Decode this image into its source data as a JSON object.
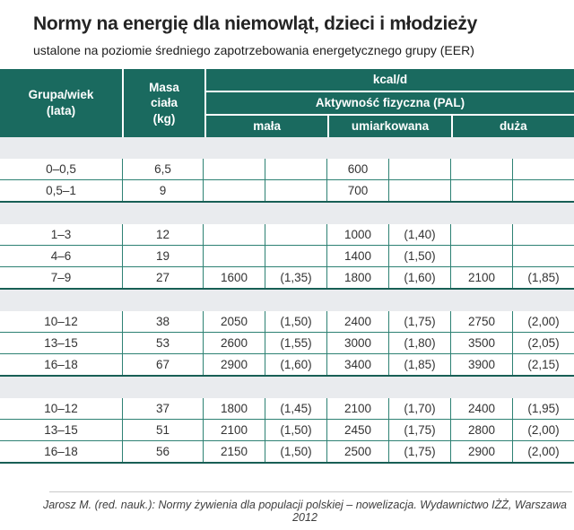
{
  "title": "Normy na energię dla niemowląt, dzieci i młodzieży",
  "subtitle": "ustalone na poziomie średniego zapotrzebowania energetycznego grupy (EER)",
  "table": {
    "header": {
      "group_col": "Grupa/wiek\n(lata)",
      "mass_col": "Masa\nciała\n(kg)",
      "kcal": "kcal/d",
      "pal": "Aktywność fizyczna (PAL)",
      "activity_levels": [
        "mała",
        "umiarkowana",
        "duża"
      ]
    },
    "columns": [
      "wiek",
      "masa",
      "mała kcal",
      "mała PAL",
      "umiarkowana kcal",
      "umiarkowana PAL",
      "duża kcal",
      "duża PAL"
    ],
    "groups": [
      {
        "rows": [
          [
            "0–0,5",
            "6,5",
            "",
            "",
            "600",
            "",
            "",
            ""
          ],
          [
            "0,5–1",
            "9",
            "",
            "",
            "700",
            "",
            "",
            ""
          ]
        ]
      },
      {
        "rows": [
          [
            "1–3",
            "12",
            "",
            "",
            "1000",
            "(1,40)",
            "",
            ""
          ],
          [
            "4–6",
            "19",
            "",
            "",
            "1400",
            "(1,50)",
            "",
            ""
          ],
          [
            "7–9",
            "27",
            "1600",
            "(1,35)",
            "1800",
            "(1,60)",
            "2100",
            "(1,85)"
          ]
        ]
      },
      {
        "rows": [
          [
            "10–12",
            "38",
            "2050",
            "(1,50)",
            "2400",
            "(1,75)",
            "2750",
            "(2,00)"
          ],
          [
            "13–15",
            "53",
            "2600",
            "(1,55)",
            "3000",
            "(1,80)",
            "3500",
            "(2,05)"
          ],
          [
            "16–18",
            "67",
            "2900",
            "(1,60)",
            "3400",
            "(1,85)",
            "3900",
            "(2,15)"
          ]
        ]
      },
      {
        "rows": [
          [
            "10–12",
            "37",
            "1800",
            "(1,45)",
            "2100",
            "(1,70)",
            "2400",
            "(1,95)"
          ],
          [
            "13–15",
            "51",
            "2100",
            "(1,50)",
            "2450",
            "(1,75)",
            "2800",
            "(2,00)"
          ],
          [
            "16–18",
            "56",
            "2150",
            "(1,50)",
            "2500",
            "(1,75)",
            "2900",
            "(2,00)"
          ]
        ]
      }
    ]
  },
  "footer": "Jarosz M. (red. nauk.): Normy żywienia dla populacji polskiej – nowelizacja. Wydawnictwo IŻŻ, Warszawa 2012",
  "colors": {
    "header_bg": "#1a6a5f",
    "cell_border": "#2d8173",
    "group_border": "#185f55",
    "gap_band": "#e9ebee"
  }
}
